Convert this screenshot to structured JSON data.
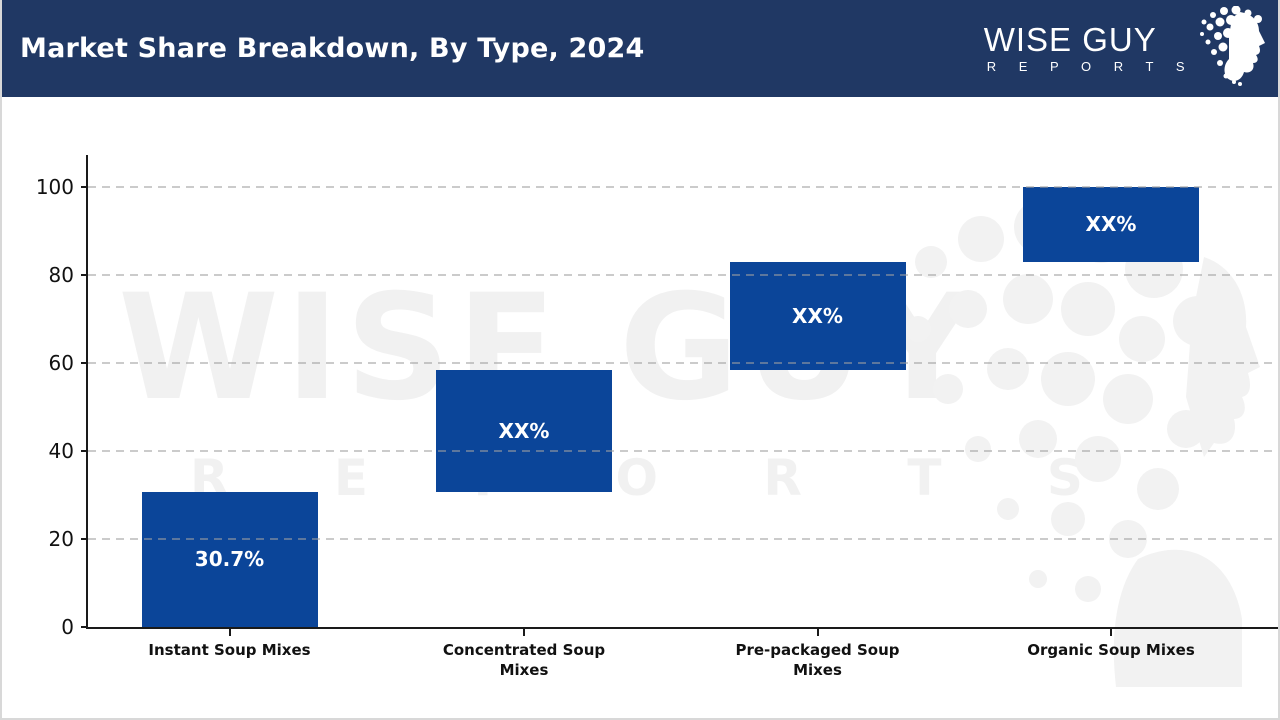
{
  "header": {
    "title": "Market Share Breakdown, By Type, 2024",
    "logo": {
      "line1": "WISE GUY",
      "line2": "R E P O R T S"
    }
  },
  "watermark": {
    "line1": "WISE GUY",
    "line2": "R E P O R T S"
  },
  "chart_data": {
    "type": "bar",
    "subtype": "floating-waterfall",
    "title": "Market Share Breakdown, By Type, 2024",
    "categories": [
      "Instant Soup Mixes",
      "Concentrated Soup Mixes",
      "Pre-packaged Soup Mixes",
      "Organic Soup Mixes"
    ],
    "segments": [
      {
        "start": 0,
        "end": 30.7,
        "label": "30.7%"
      },
      {
        "start": 30.7,
        "end": 58.4,
        "label": "XX%"
      },
      {
        "start": 58.4,
        "end": 83.0,
        "label": "XX%"
      },
      {
        "start": 83.0,
        "end": 100,
        "label": "XX%"
      }
    ],
    "yticks": [
      0,
      20,
      40,
      60,
      80,
      100
    ],
    "ylim": [
      0,
      107
    ],
    "xlabel": "",
    "ylabel": "",
    "grid": "horizontal-dashed",
    "legend": false,
    "bar_color": "#0b4599",
    "grid_color": "#d0d0d0",
    "header_color": "#203864",
    "watermark_color": "#f1f1f1"
  }
}
